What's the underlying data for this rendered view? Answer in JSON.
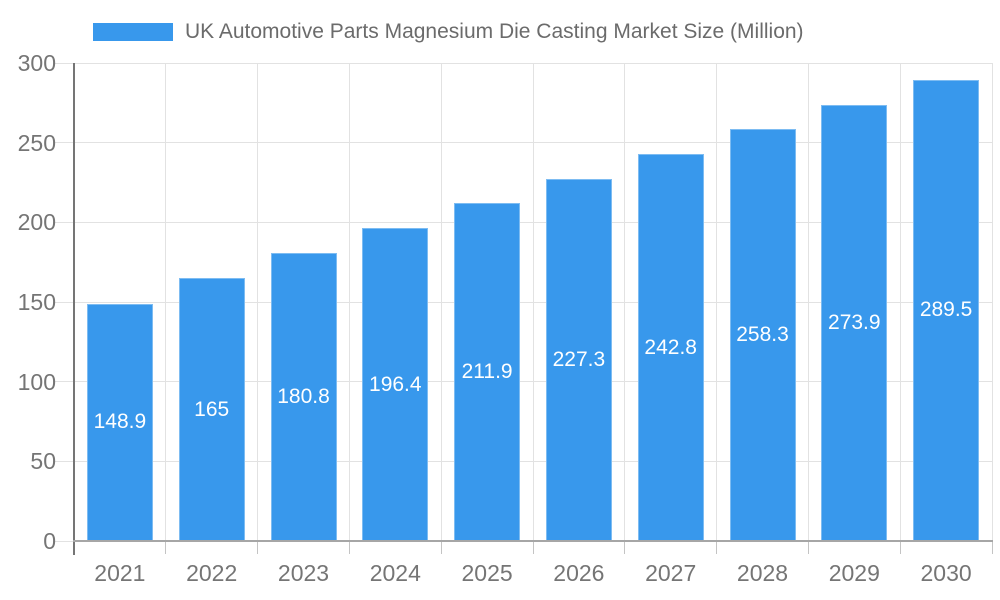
{
  "chart_data": {
    "type": "bar",
    "title": "UK Automotive Parts Magnesium Die Casting Market Size (Million)",
    "categories": [
      "2021",
      "2022",
      "2023",
      "2024",
      "2025",
      "2026",
      "2027",
      "2028",
      "2029",
      "2030"
    ],
    "values": [
      148.9,
      165,
      180.8,
      196.4,
      211.9,
      227.3,
      242.8,
      258.3,
      273.9,
      289.5
    ],
    "value_labels": [
      "148.9",
      "165",
      "180.8",
      "196.4",
      "211.9",
      "227.3",
      "242.8",
      "258.3",
      "273.9",
      "289.5"
    ],
    "xlabel": "",
    "ylabel": "",
    "ylim": [
      0,
      300
    ],
    "ytick_interval": 50,
    "ytick_labels": [
      "0",
      "50",
      "100",
      "150",
      "200",
      "250",
      "300"
    ],
    "grid": true,
    "legend_position": "top-left",
    "colors": {
      "bar": "#3898ec",
      "bar_label": "#ffffff",
      "axis_text": "#757575",
      "legend_text": "#6b6b6b",
      "gridline": "#e2e2e2",
      "y_axis_line": "#757575",
      "x_axis_line": "#a6a6a6",
      "tick": "#c4c4c4",
      "background": "#ffffff"
    }
  }
}
